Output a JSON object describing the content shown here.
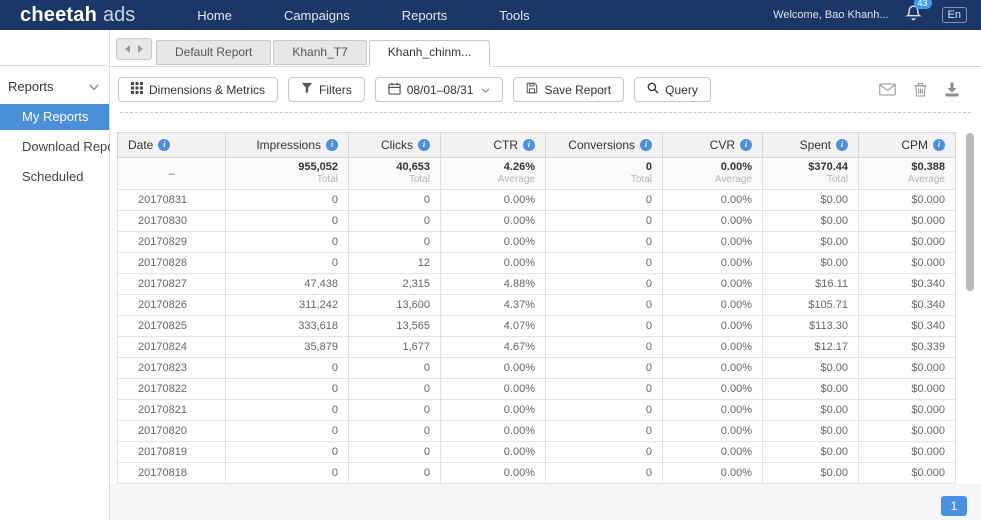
{
  "navbar": {
    "brand_bold": "cheetah",
    "brand_light": "ads",
    "links": [
      "Home",
      "Campaigns",
      "Reports",
      "Tools"
    ],
    "welcome": "Welcome, Bao Khanh...",
    "notification_count": "43",
    "language": "En"
  },
  "tabs": {
    "items": [
      {
        "label": "Default Report",
        "active": false
      },
      {
        "label": "Khanh_T7",
        "active": false
      },
      {
        "label": "Khanh_chinm...",
        "active": true
      }
    ]
  },
  "toolbar": {
    "dimensions_metrics": "Dimensions & Metrics",
    "filters": "Filters",
    "date_range": "08/01–08/31",
    "save_report": "Save Report",
    "query": "Query"
  },
  "sidebar": {
    "section_label": "Reports",
    "items": [
      {
        "label": "My Reports",
        "active": true
      },
      {
        "label": "Download Report",
        "active": false
      },
      {
        "label": "Scheduled",
        "active": false
      }
    ]
  },
  "table": {
    "columns": [
      "Date",
      "Impressions",
      "Clicks",
      "CTR",
      "Conversions",
      "CVR",
      "Spent",
      "CPM"
    ],
    "summary": {
      "date": "–",
      "cells": [
        {
          "value": "955,052",
          "label": "Total"
        },
        {
          "value": "40,653",
          "label": "Total"
        },
        {
          "value": "4.26%",
          "label": "Average"
        },
        {
          "value": "0",
          "label": "Total"
        },
        {
          "value": "0.00%",
          "label": "Average"
        },
        {
          "value": "$370.44",
          "label": "Total"
        },
        {
          "value": "$0.388",
          "label": "Average"
        }
      ]
    },
    "rows": [
      [
        "20170831",
        "0",
        "0",
        "0.00%",
        "0",
        "0.00%",
        "$0.00",
        "$0.000"
      ],
      [
        "20170830",
        "0",
        "0",
        "0.00%",
        "0",
        "0.00%",
        "$0.00",
        "$0.000"
      ],
      [
        "20170829",
        "0",
        "0",
        "0.00%",
        "0",
        "0.00%",
        "$0.00",
        "$0.000"
      ],
      [
        "20170828",
        "0",
        "12",
        "0.00%",
        "0",
        "0.00%",
        "$0.00",
        "$0.000"
      ],
      [
        "20170827",
        "47,438",
        "2,315",
        "4.88%",
        "0",
        "0.00%",
        "$16.11",
        "$0.340"
      ],
      [
        "20170826",
        "311,242",
        "13,600",
        "4.37%",
        "0",
        "0.00%",
        "$105.71",
        "$0.340"
      ],
      [
        "20170825",
        "333,618",
        "13,565",
        "4.07%",
        "0",
        "0.00%",
        "$113.30",
        "$0.340"
      ],
      [
        "20170824",
        "35,879",
        "1,677",
        "4.67%",
        "0",
        "0.00%",
        "$12.17",
        "$0.339"
      ],
      [
        "20170823",
        "0",
        "0",
        "0.00%",
        "0",
        "0.00%",
        "$0.00",
        "$0.000"
      ],
      [
        "20170822",
        "0",
        "0",
        "0.00%",
        "0",
        "0.00%",
        "$0.00",
        "$0.000"
      ],
      [
        "20170821",
        "0",
        "0",
        "0.00%",
        "0",
        "0.00%",
        "$0.00",
        "$0.000"
      ],
      [
        "20170820",
        "0",
        "0",
        "0.00%",
        "0",
        "0.00%",
        "$0.00",
        "$0.000"
      ],
      [
        "20170819",
        "0",
        "0",
        "0.00%",
        "0",
        "0.00%",
        "$0.00",
        "$0.000"
      ],
      [
        "20170818",
        "0",
        "0",
        "0.00%",
        "0",
        "0.00%",
        "$0.00",
        "$0.000"
      ]
    ]
  },
  "pagination": {
    "page": "1"
  },
  "colors": {
    "navbar_bg": "#1b3768",
    "active_item_bg": "#4a90d9",
    "info_icon": "#4a90e2",
    "pagination_bg": "#4a90e2",
    "badge_bg": "#3b9ff0"
  }
}
